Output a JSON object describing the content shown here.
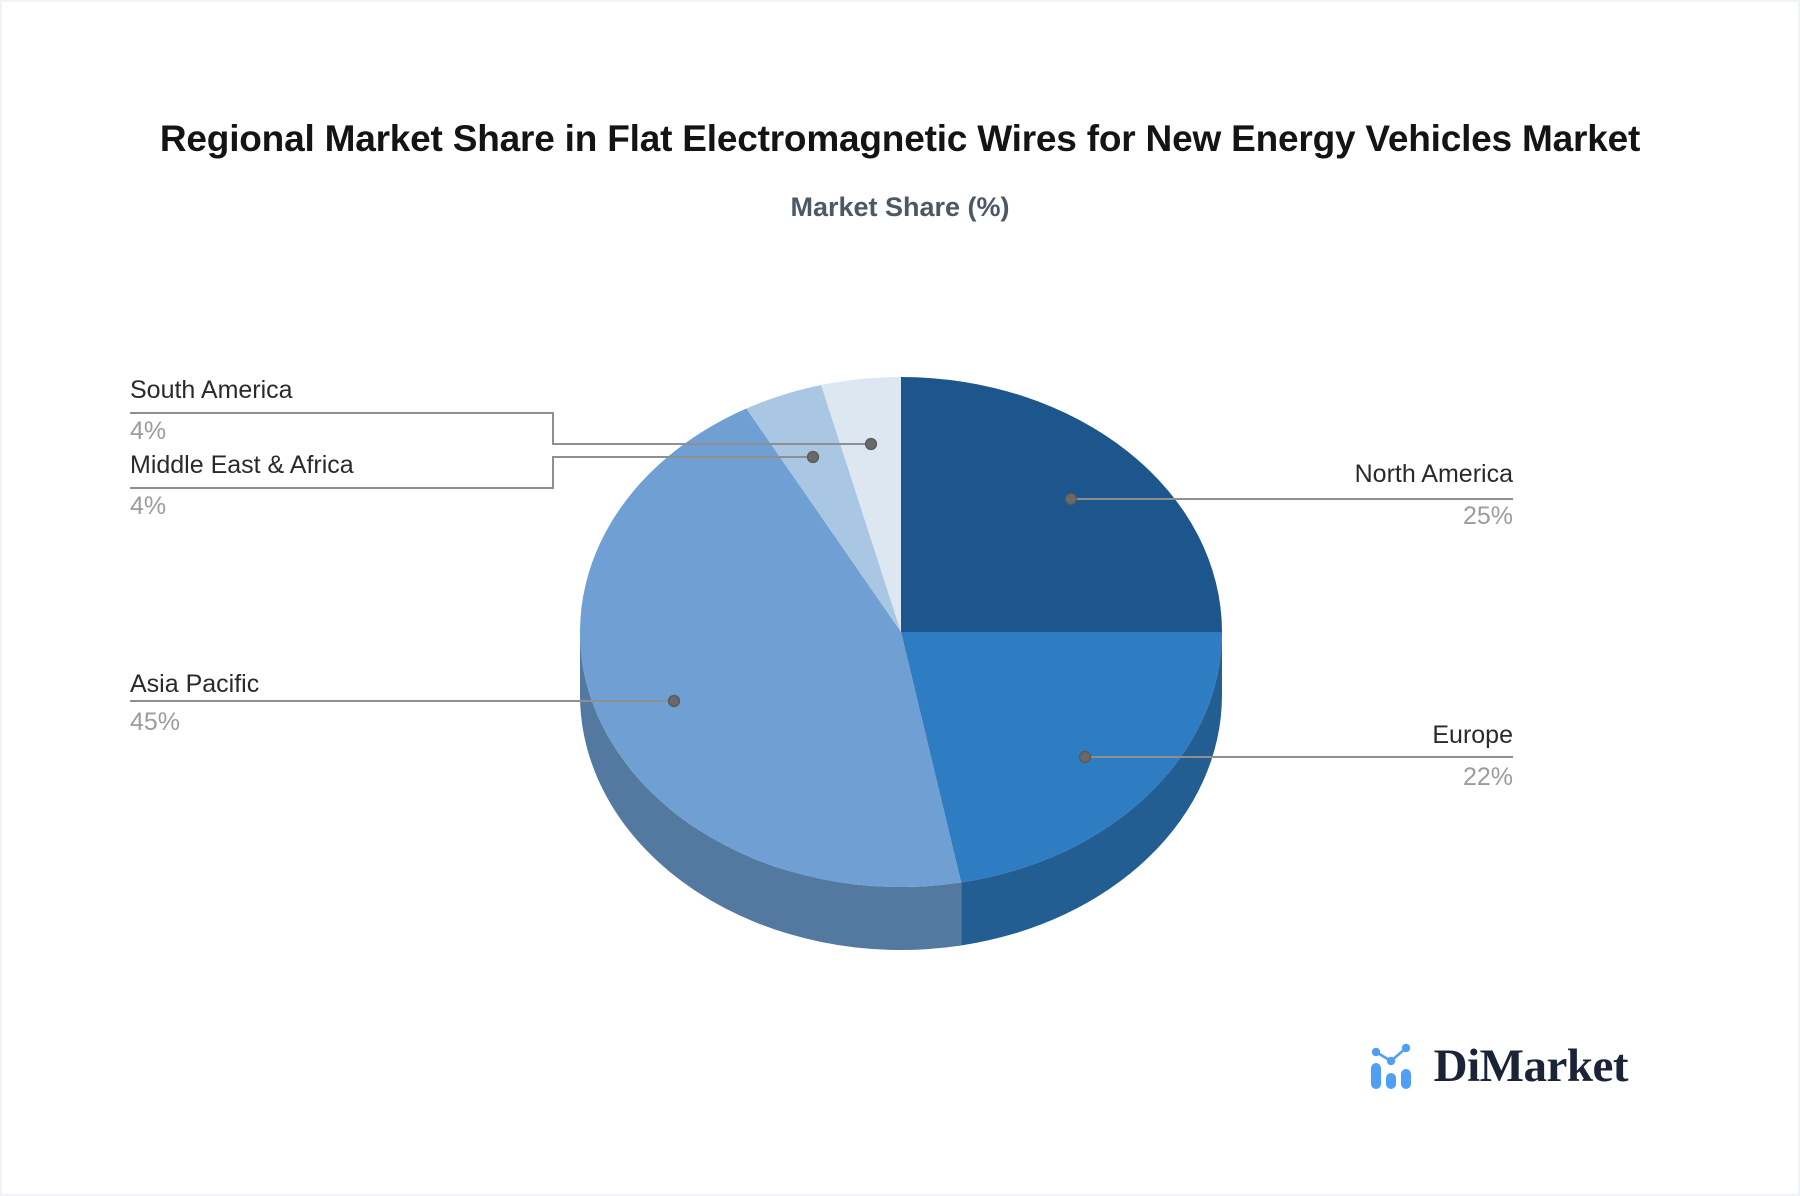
{
  "header": {
    "title": "Regional Market Share in Flat Electromagnetic Wires for New Energy Vehicles Market",
    "subtitle": "Market Share (%)"
  },
  "chart_data": {
    "type": "pie",
    "style": "3d",
    "title": "Regional Market Share in Flat Electromagnetic Wires for New Energy Vehicles Market",
    "subtitle": "Market Share (%)",
    "unit": "%",
    "start_angle_deg": 0,
    "direction": "clockwise",
    "legend": "callout-labels",
    "slices": [
      {
        "label": "North America",
        "value": 25,
        "display": "25%",
        "color": "#1D568D"
      },
      {
        "label": "Europe",
        "value": 22,
        "display": "22%",
        "color": "#2E7CC1"
      },
      {
        "label": "Asia Pacific",
        "value": 45,
        "display": "45%",
        "color": "#6F9FD3"
      },
      {
        "label": "Middle East & Africa",
        "value": 4,
        "display": "4%",
        "color": "#A9C6E3"
      },
      {
        "label": "South America",
        "value": 4,
        "display": "4%",
        "color": "#DCE7F1"
      }
    ],
    "leader_line_color": "#8f8f8f",
    "leader_dot_color": "#696969"
  },
  "logo": {
    "text": "DiMarket",
    "icon": "bar-line-chart-icon",
    "accent_color": "#4FA0F4",
    "text_color": "#1B2436"
  }
}
